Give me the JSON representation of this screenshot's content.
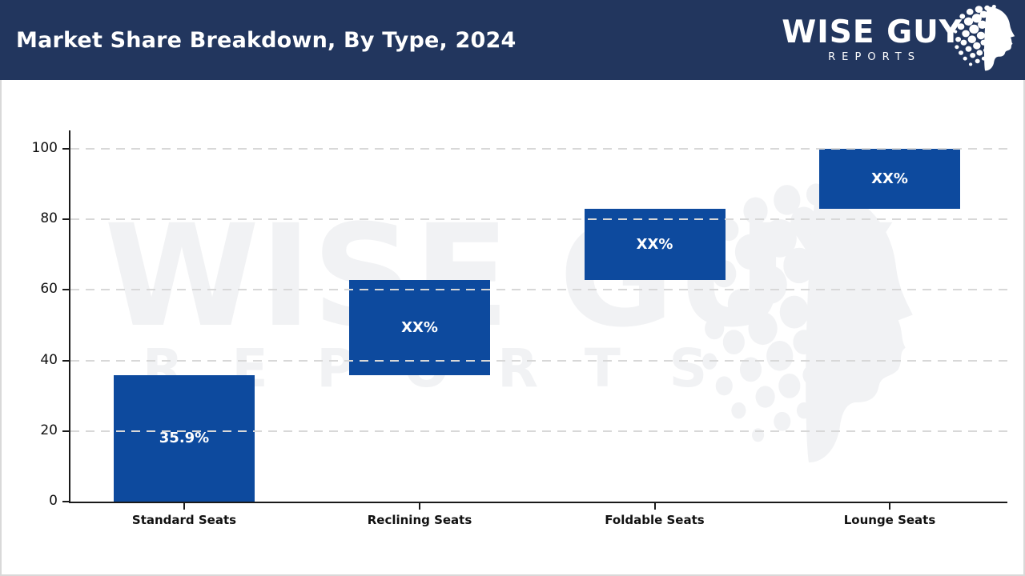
{
  "header": {
    "title": "Market Share Breakdown, By Type, 2024",
    "logo": {
      "line1": "WISE GUY",
      "line2": "REPORTS"
    }
  },
  "watermark": {
    "line1": "WISE GUY",
    "line2": "REPORTS"
  },
  "colors": {
    "header_bg": "#22365e",
    "bar_fill": "#0d4a9e",
    "bar_label": "#ffffff",
    "gridline": "#d8d8d8",
    "axis": "#1a1a1a",
    "watermark": "#f1f2f4",
    "frame_border": "#d9d9d9"
  },
  "chart_data": {
    "type": "bar",
    "variant": "waterfall",
    "title": "Market Share Breakdown, By Type, 2024",
    "categories": [
      "Standard Seats",
      "Reclining Seats",
      "Foldable Seats",
      "Lounge Seats"
    ],
    "bars": [
      {
        "category": "Standard Seats",
        "start": 0,
        "end": 35.9,
        "label": "35.9%"
      },
      {
        "category": "Reclining Seats",
        "start": 35.9,
        "end": 62.9,
        "label": "XX%"
      },
      {
        "category": "Foldable Seats",
        "start": 62.9,
        "end": 83.0,
        "label": "XX%"
      },
      {
        "category": "Lounge Seats",
        "start": 83.0,
        "end": 100.0,
        "label": "XX%"
      }
    ],
    "yticks": [
      0,
      20,
      40,
      60,
      80,
      100
    ],
    "ylim": [
      0,
      105
    ],
    "xlabel": "",
    "ylabel": "",
    "grid": "dashed-horizontal-above-bars",
    "legend": "none"
  }
}
